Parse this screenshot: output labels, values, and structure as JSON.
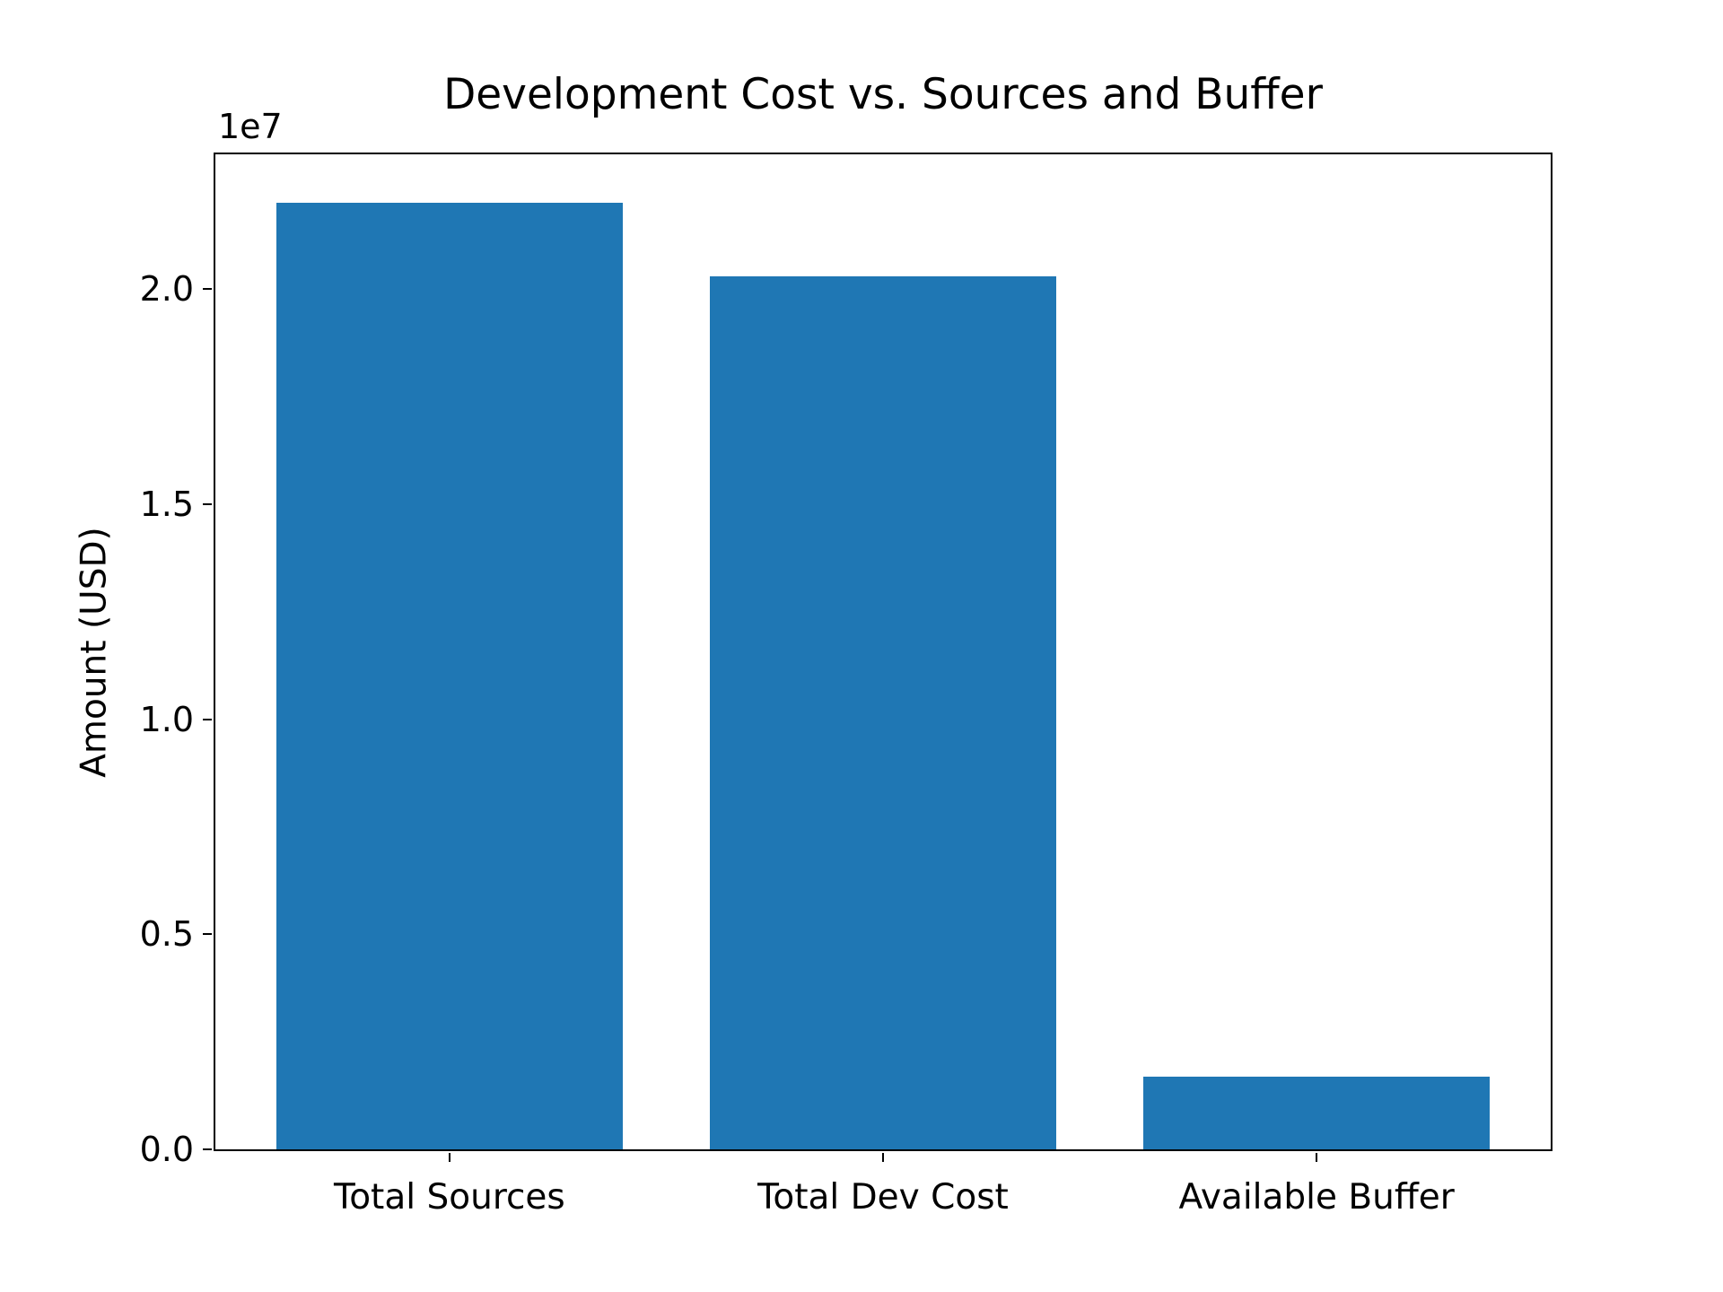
{
  "figure": {
    "title": "Development Cost vs. Sources and Buffer",
    "ylabel": "Amount (USD)",
    "offset_label": "1e7"
  },
  "chart_data": {
    "type": "bar",
    "title": "Development Cost vs. Sources and Buffer",
    "xlabel": "",
    "ylabel": "Amount (USD)",
    "categories": [
      "Total Sources",
      "Total Dev Cost",
      "Available Buffer"
    ],
    "values": [
      22000000,
      20300000,
      1700000
    ],
    "ylim": [
      0,
      23130000
    ],
    "xlim": [
      -0.54,
      2.54
    ],
    "bar_width_units": 0.8,
    "yticks": [
      0,
      5000000,
      10000000,
      15000000,
      20000000
    ],
    "ytick_labels": [
      "0.0",
      "0.5",
      "1.0",
      "1.5",
      "2.0"
    ],
    "offset_text": "1e7",
    "bar_color": "#1f77b4",
    "axis_color": "#000000",
    "background_color": "#ffffff",
    "grid": false,
    "legend": false
  }
}
